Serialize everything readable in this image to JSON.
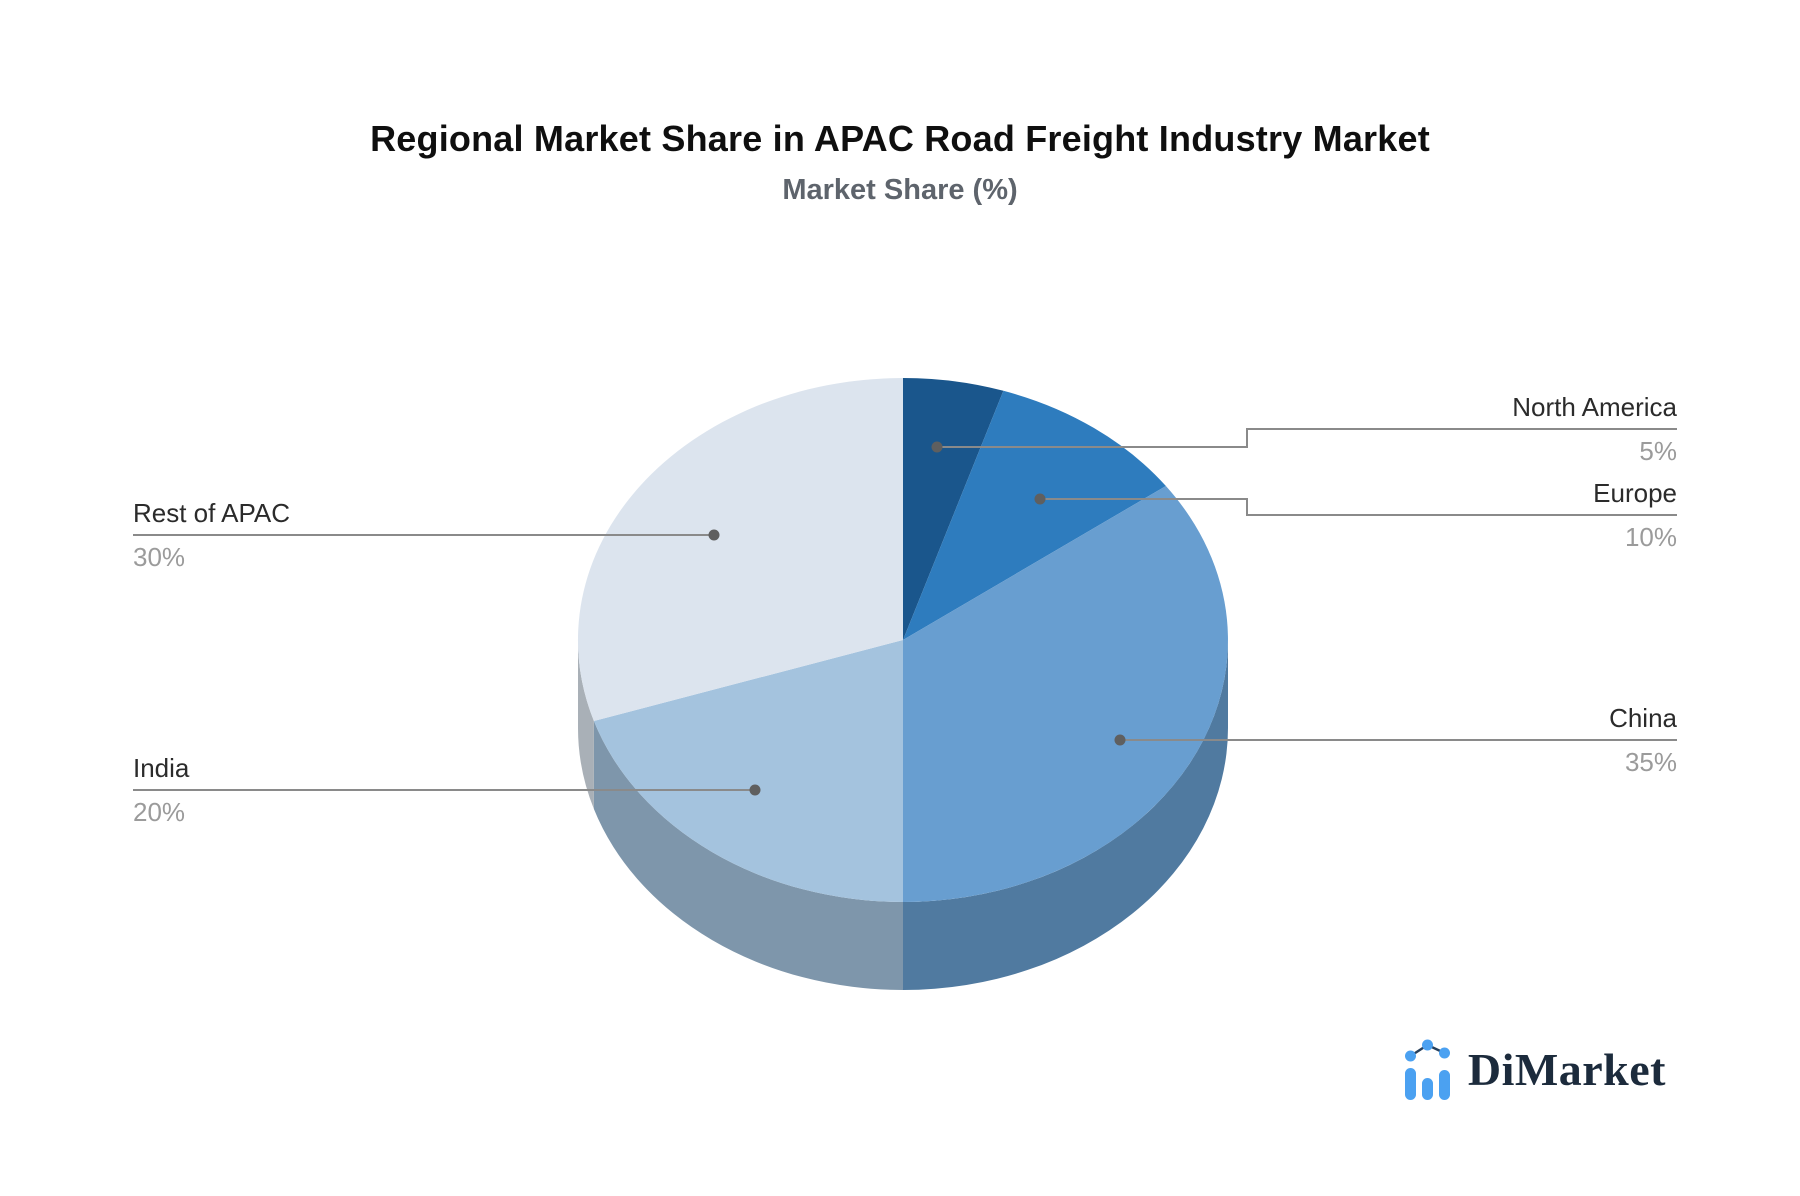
{
  "chart_data": {
    "type": "pie",
    "style": "3d",
    "title": "Regional Market Share in APAC Road Freight Industry Market",
    "subtitle": "Market Share (%)",
    "unit": "%",
    "start_angle_deg": 0,
    "direction": "clockwise",
    "legend": "none",
    "slices": [
      {
        "label": "North America",
        "value": 5,
        "value_label": "5%",
        "color": "#1A568C"
      },
      {
        "label": "Europe",
        "value": 10,
        "value_label": "10%",
        "color": "#2E7CBE"
      },
      {
        "label": "China",
        "value": 35,
        "value_label": "35%",
        "color": "#689ED0"
      },
      {
        "label": "India",
        "value": 20,
        "value_label": "20%",
        "color": "#A4C3DE"
      },
      {
        "label": "Rest of APAC",
        "value": 30,
        "value_label": "30%",
        "color": "#DCE4EE"
      }
    ]
  },
  "branding": {
    "logo_text": "DiMarket",
    "logo_icon": "bar-line-chart-icon",
    "logo_icon_color": "#4BA1F1",
    "logo_text_color": "#1C2B3C"
  },
  "colors": {
    "background": "#FFFFFF",
    "title": "#0F0F0F",
    "subtitle": "#5E646C",
    "connector": "#8A8A8A",
    "connector_dot": "#5F5F5F",
    "label_name": "#2B2B2B",
    "label_value": "#9B9B9B"
  }
}
